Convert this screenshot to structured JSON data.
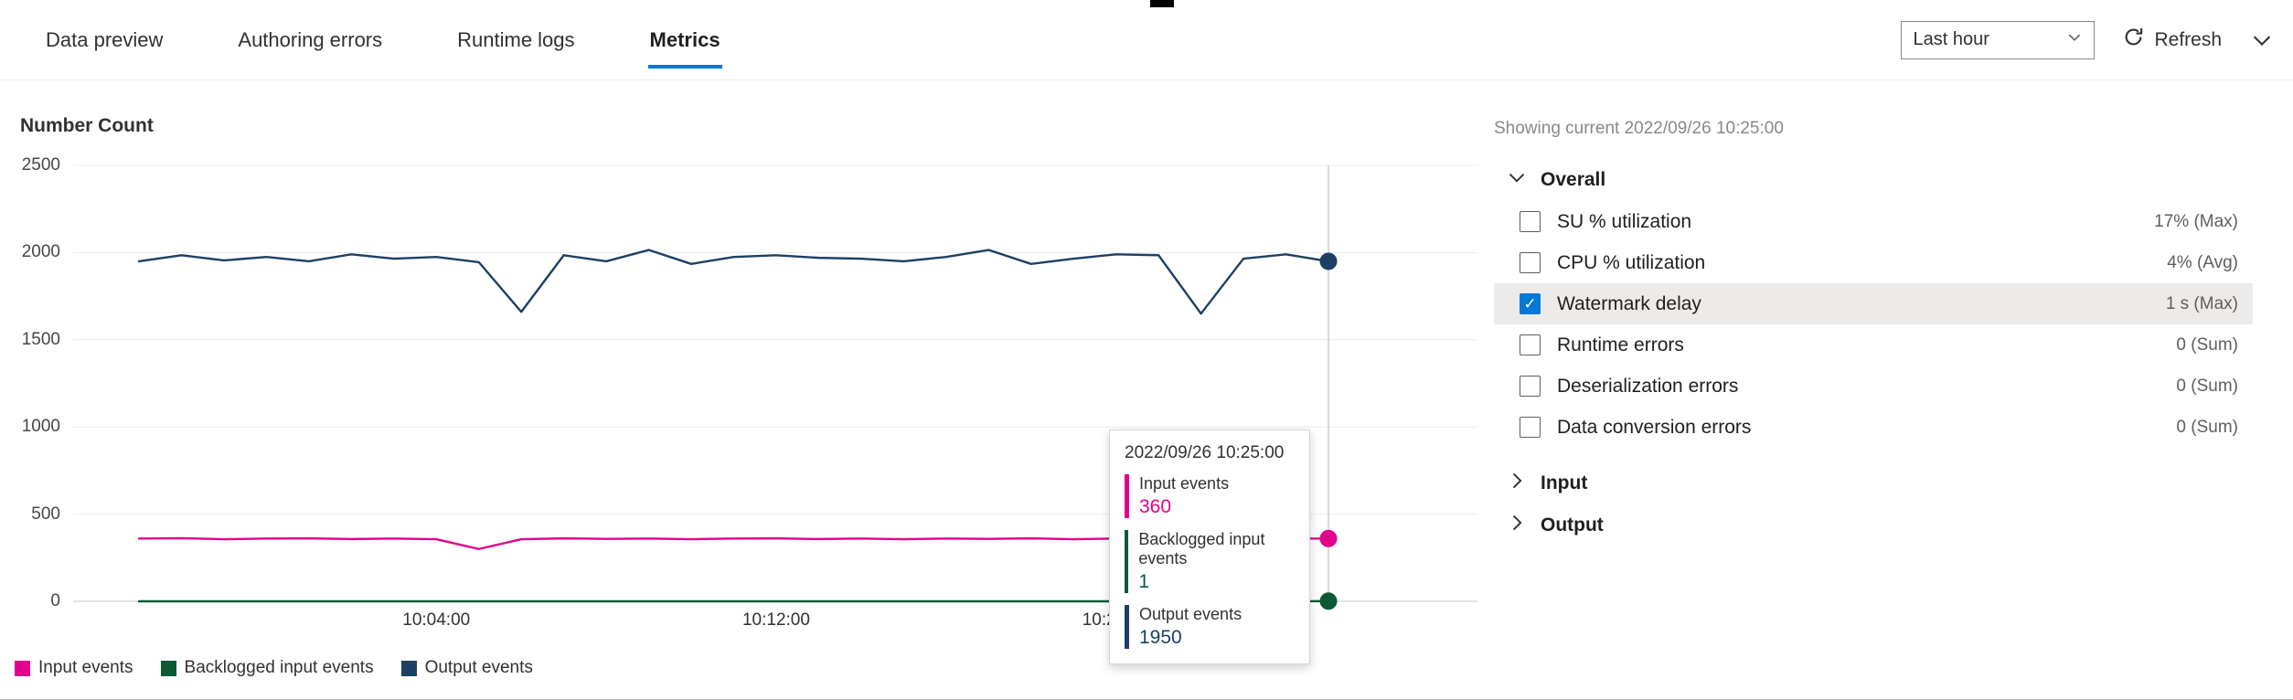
{
  "tabs": [
    {
      "label": "Data preview",
      "active": false
    },
    {
      "label": "Authoring errors",
      "active": false
    },
    {
      "label": "Runtime logs",
      "active": false
    },
    {
      "label": "Metrics",
      "active": true
    }
  ],
  "toolbar": {
    "time_range": "Last hour",
    "refresh_label": "Refresh"
  },
  "chart_data": {
    "type": "line",
    "title": "Number Count",
    "ylim": [
      0,
      2500
    ],
    "yticks": [
      0,
      500,
      1000,
      1500,
      2000,
      2500
    ],
    "xtick_labels": [
      "10:04:00",
      "10:12:00",
      "10:20:00"
    ],
    "x_times": [
      "09:57:00",
      "09:58:00",
      "09:59:00",
      "10:00:00",
      "10:01:00",
      "10:02:00",
      "10:03:00",
      "10:04:00",
      "10:05:00",
      "10:06:00",
      "10:07:00",
      "10:08:00",
      "10:09:00",
      "10:10:00",
      "10:11:00",
      "10:12:00",
      "10:13:00",
      "10:14:00",
      "10:15:00",
      "10:16:00",
      "10:17:00",
      "10:18:00",
      "10:19:00",
      "10:20:00",
      "10:21:00",
      "10:22:00",
      "10:23:00",
      "10:24:00",
      "10:25:00"
    ],
    "series": [
      {
        "name": "Input events",
        "color": "#e3008c",
        "values": [
          360,
          362,
          356,
          360,
          361,
          357,
          360,
          356,
          300,
          356,
          361,
          358,
          360,
          356,
          360,
          361,
          357,
          360,
          356,
          360,
          358,
          361,
          356,
          360,
          361,
          357,
          360,
          360,
          360
        ]
      },
      {
        "name": "Backlogged input events",
        "color": "#0b5a35",
        "values": [
          0,
          0,
          0,
          0,
          0,
          0,
          0,
          0,
          0,
          0,
          0,
          0,
          0,
          0,
          0,
          0,
          0,
          0,
          0,
          0,
          0,
          0,
          0,
          0,
          0,
          0,
          0,
          0,
          1
        ]
      },
      {
        "name": "Output events",
        "color": "#1b4064",
        "values": [
          1950,
          1985,
          1955,
          1975,
          1950,
          1990,
          1965,
          1975,
          1945,
          1660,
          1985,
          1950,
          2015,
          1935,
          1975,
          1985,
          1970,
          1965,
          1950,
          1975,
          2015,
          1935,
          1965,
          1990,
          1985,
          1650,
          1965,
          1990,
          1950
        ]
      }
    ],
    "cursor_time": "10:25:00",
    "grid": true,
    "legend_position": "bottom-left"
  },
  "tooltip": {
    "timestamp": "2022/09/26 10:25:00",
    "entries": [
      {
        "label": "Input events",
        "value": "360",
        "color": "#e3008c"
      },
      {
        "label": "Backlogged input events",
        "value": "1",
        "color": "#0b5a35"
      },
      {
        "label": "Output events",
        "value": "1950",
        "color": "#1b4064"
      }
    ]
  },
  "metrics_panel": {
    "showing_current": "Showing current 2022/09/26 10:25:00",
    "groups": [
      {
        "label": "Overall",
        "expanded": true,
        "rows": [
          {
            "label": "SU % utilization",
            "value": "17% (Max)",
            "checked": false
          },
          {
            "label": "CPU % utilization",
            "value": "4% (Avg)",
            "checked": false
          },
          {
            "label": "Watermark delay",
            "value": "1 s (Max)",
            "checked": true
          },
          {
            "label": "Runtime errors",
            "value": "0 (Sum)",
            "checked": false
          },
          {
            "label": "Deserialization errors",
            "value": "0 (Sum)",
            "checked": false
          },
          {
            "label": "Data conversion errors",
            "value": "0 (Sum)",
            "checked": false
          }
        ]
      },
      {
        "label": "Input",
        "expanded": false
      },
      {
        "label": "Output",
        "expanded": false
      }
    ]
  },
  "colors": {
    "accent": "#0078d4",
    "checked_row_bg": "#edebe9"
  }
}
